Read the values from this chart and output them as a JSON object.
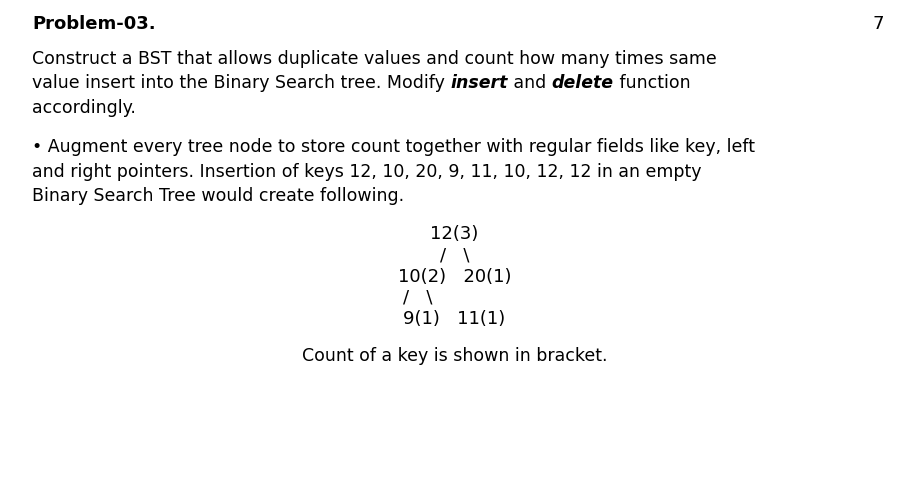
{
  "bg_color": "#ffffff",
  "header": "Problem-03.",
  "page_number": "7",
  "line1": "Construct a BST that allows duplicate values and count how many times same",
  "line2_pre": "value insert into the Binary Search tree. Modify ",
  "line2_bold1": "insert",
  "line2_mid": " and ",
  "line2_bold2": "delete",
  "line2_post": " function",
  "line3": "accordingly.",
  "bullet_line1": "• Augment every tree node to store count together with regular fields like key, left",
  "bullet_line2": "and right pointers. Insertion of keys 12, 10, 20, 9, 11, 10, 12, 12 in an empty",
  "bullet_line3": "Binary Search Tree would create following.",
  "tree_root": "12(3)",
  "tree_slash1": "/   \\",
  "tree_mid": "10(2)   20(1)",
  "tree_slash2": "/   \\",
  "tree_leaves": "9(1)   11(1)",
  "footer": "Count of a key is shown in bracket.",
  "fs_header": 13,
  "fs_body": 12.5,
  "fs_tree": 13,
  "fs_footer": 12.5
}
